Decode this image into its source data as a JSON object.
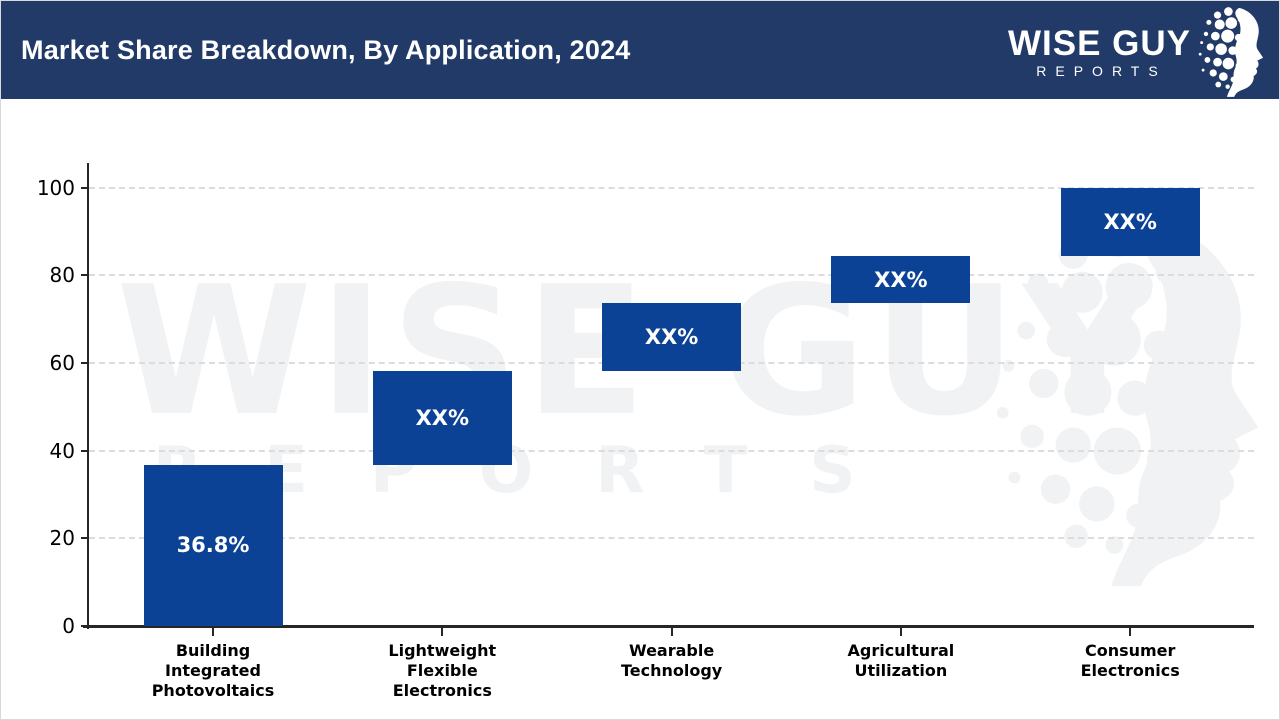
{
  "header": {
    "title": "Market Share Breakdown, By Application, 2024",
    "logo": {
      "line1": "WISE GUY",
      "line2": "REPORTS"
    }
  },
  "watermark": {
    "line1": "WISE GUY",
    "line2": "REPORTS"
  },
  "colors": {
    "header_bg": "#213a67",
    "bar": "#0b4296",
    "axis": "#262626",
    "grid": "#dcdcdc",
    "bar_label": "#ffffff",
    "watermark": "#f1f2f4",
    "text": "#000000"
  },
  "chart_data": {
    "type": "waterfall",
    "title": "Market Share Breakdown, By Application, 2024",
    "categories": [
      "Building Integrated Photovoltaics",
      "Lightweight Flexible Electronics",
      "Wearable Technology",
      "Agricultural Utilization",
      "Consumer Electronics"
    ],
    "category_lines": [
      [
        "Building",
        "Integrated",
        "Photovoltaics"
      ],
      [
        "Lightweight",
        "Flexible",
        "Electronics"
      ],
      [
        "Wearable",
        "Technology"
      ],
      [
        "Agricultural",
        "Utilization"
      ],
      [
        "Consumer",
        "Electronics"
      ]
    ],
    "segments": [
      {
        "start": 0,
        "end": 36.8,
        "label": "36.8%"
      },
      {
        "start": 36.8,
        "end": 58.2,
        "label": "XX%"
      },
      {
        "start": 58.2,
        "end": 73.6,
        "label": "XX%"
      },
      {
        "start": 73.6,
        "end": 84.3,
        "label": "XX%"
      },
      {
        "start": 84.3,
        "end": 100,
        "label": "XX%"
      }
    ],
    "yticks": [
      0,
      20,
      40,
      60,
      80,
      100
    ],
    "ylim": [
      0,
      105
    ],
    "grid": "dashed-horizontal",
    "legend": "none",
    "unit": "%"
  }
}
